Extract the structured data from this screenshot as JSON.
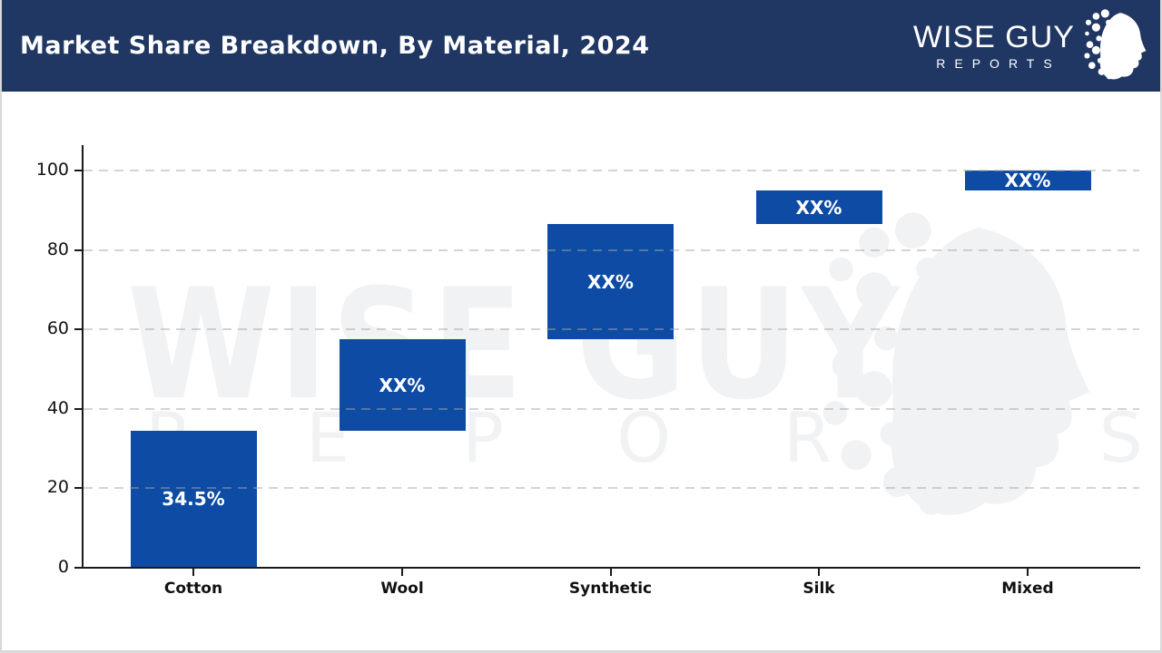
{
  "header": {
    "title": "Market Share Breakdown, By Material, 2024",
    "logo": {
      "line1": "WISE GUY",
      "line2": "REPORTS"
    }
  },
  "watermark": {
    "line1": "WISE GUY",
    "line2": "R E P O R T S"
  },
  "colors": {
    "header_bg": "#203763",
    "bar": "#0d4ba4",
    "grid": "#d9d9d9",
    "axis": "#1a1a1a",
    "bar_label": "#ffffff",
    "watermark": "#f1f2f4"
  },
  "chart_data": {
    "type": "bar",
    "subtype": "waterfall",
    "title": "Market Share Breakdown, By Material, 2024",
    "categories": [
      "Cotton",
      "Wool",
      "Synthetic",
      "Silk",
      "Mixed"
    ],
    "series": [
      {
        "name": "Market share (%)",
        "starts": [
          0,
          34.5,
          57.5,
          86.5,
          95
        ],
        "ends": [
          34.5,
          57.5,
          86.5,
          95,
          100
        ],
        "values": [
          34.5,
          23,
          29,
          8.5,
          5
        ]
      }
    ],
    "bar_labels": [
      "34.5%",
      "XX%",
      "XX%",
      "XX%",
      "XX%"
    ],
    "xlabel": "",
    "ylabel": "",
    "ylim": [
      0,
      100
    ],
    "yticks": [
      0,
      20,
      40,
      60,
      80,
      100
    ],
    "grid": "horizontal-dashed",
    "legend": "none"
  }
}
